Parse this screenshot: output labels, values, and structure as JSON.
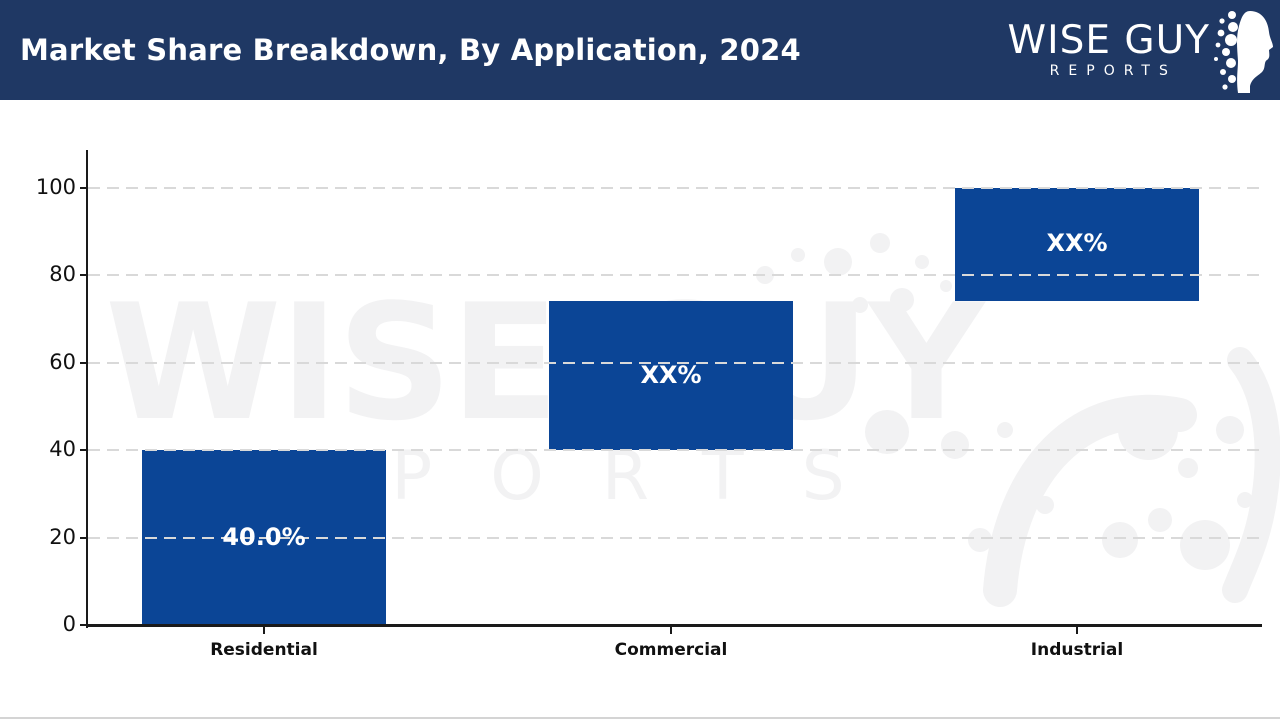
{
  "header": {
    "title": "Market Share Breakdown, By Application, 2024",
    "logo": {
      "line1": "WISE GUY",
      "line2": "REPORTS"
    }
  },
  "watermark": {
    "line1": "WISE GUY",
    "line2": "REPORTS"
  },
  "colors": {
    "header_bg": "#1f3864",
    "bar": "#0b4596",
    "bar_label": "#ffffff",
    "grid": "#d9d9d9",
    "axis": "#1a1a1a",
    "watermark": "#f2f2f3"
  },
  "chart_data": {
    "type": "bar",
    "subtype": "waterfall-floating-bars",
    "title": "Market Share Breakdown, By Application, 2024",
    "categories": [
      "Residential",
      "Commercial",
      "Industrial"
    ],
    "segments": [
      {
        "category": "Residential",
        "start": 0,
        "end": 40,
        "value": 40.0,
        "label": "40.0%"
      },
      {
        "category": "Commercial",
        "start": 40,
        "end": 74,
        "value": 34.0,
        "label": "XX%"
      },
      {
        "category": "Industrial",
        "start": 74,
        "end": 100,
        "value": 26.0,
        "label": "XX%"
      }
    ],
    "ylim": [
      0,
      100
    ],
    "yticks": [
      0,
      20,
      40,
      60,
      80,
      100
    ],
    "xlabel": "",
    "ylabel": "",
    "grid": "dashed-horizontal-light-gray",
    "legend": "none",
    "bar_color": "#0b4596",
    "label_color": "#ffffff"
  }
}
